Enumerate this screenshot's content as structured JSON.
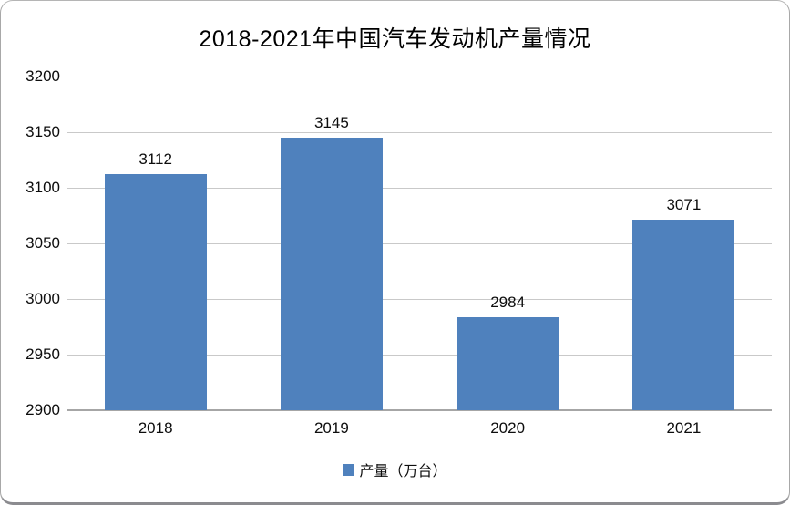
{
  "window": {
    "background": "#ffffff",
    "frame_border_color": "#a8a8a8",
    "frame_bottom_border_color": "#8b8b8f"
  },
  "chart_data": {
    "type": "bar",
    "title": "2018-2021年中国汽车发动机产量情况",
    "categories": [
      "2018",
      "2019",
      "2020",
      "2021"
    ],
    "values": [
      3112,
      3145,
      2984,
      3071
    ],
    "data_labels": [
      "3112",
      "3145",
      "2984",
      "3071"
    ],
    "series_name": "产量（万台）",
    "legend": [
      {
        "label": "产量（万台）",
        "color": "#4F81BD"
      }
    ],
    "legend_position": "bottom",
    "xlabel": "",
    "ylabel": "",
    "ylim": [
      2900,
      3200
    ],
    "ytick_step": 50,
    "yticks": [
      2900,
      2950,
      3000,
      3050,
      3100,
      3150,
      3200
    ],
    "grid": true,
    "bar_color": "#4F81BD",
    "gridline_color": "#c9c9c9",
    "axis_color": "#a6a6a6",
    "text_color": "#0d0d0d"
  }
}
